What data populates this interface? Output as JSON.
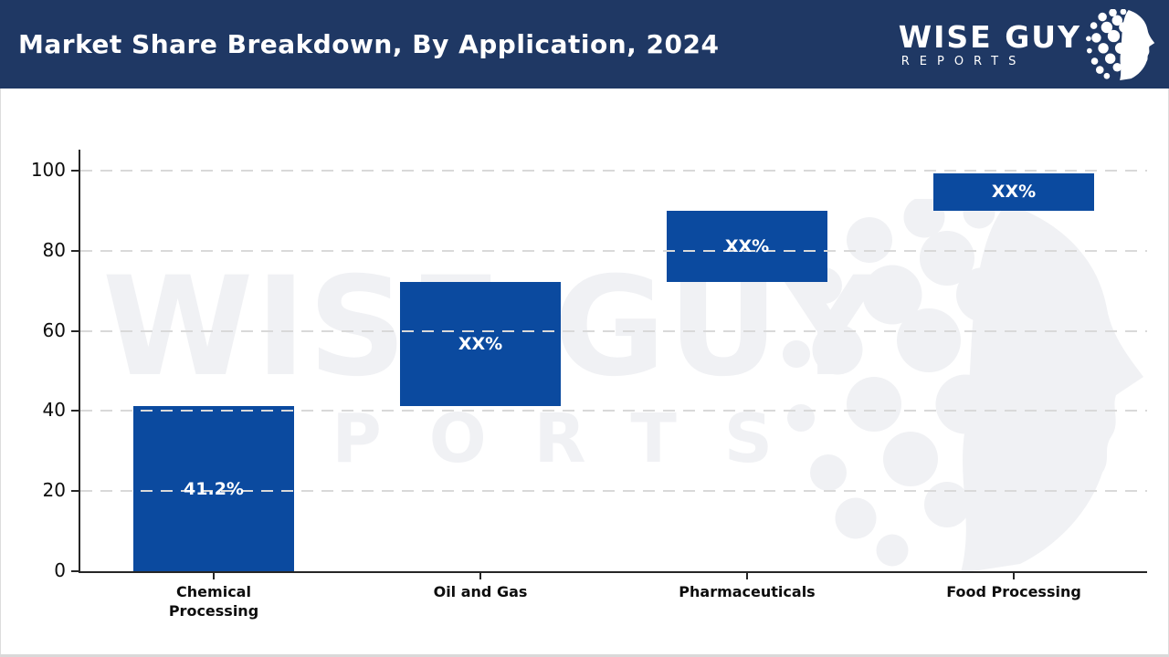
{
  "header": {
    "title": "Market Share Breakdown, By Application, 2024",
    "bg_color": "#1f3864",
    "logo": {
      "line1": "WISE GUY",
      "line2": "REPORTS"
    }
  },
  "watermark": {
    "line1": "WISE GUY",
    "line2": "REPORTS"
  },
  "chart_data": {
    "type": "bar",
    "subtype": "waterfall",
    "title": "Market Share Breakdown, By Application, 2024",
    "categories": [
      "Chemical Processing",
      "Oil and Gas",
      "Pharmaceuticals",
      "Food Processing"
    ],
    "segments": [
      {
        "category": "Chemical Processing",
        "start": 0,
        "end": 41.2,
        "label": "41.2%"
      },
      {
        "category": "Oil and Gas",
        "start": 41.2,
        "end": 72.3,
        "label": "XX%"
      },
      {
        "category": "Pharmaceuticals",
        "start": 72.3,
        "end": 90.0,
        "label": "XX%"
      },
      {
        "category": "Food Processing",
        "start": 90.0,
        "end": 99.3,
        "label": "XX%"
      }
    ],
    "xlabel": "",
    "ylabel": "",
    "ylim": [
      0,
      100
    ],
    "yticks": [
      0,
      20,
      40,
      60,
      80,
      100
    ],
    "grid": "horizontal-dashed-over-bars",
    "legend": "none",
    "bar_color": "#0b4a9f",
    "bar_label_color": "#ffffff",
    "gridline_color": "#d9d9d9",
    "axis_color": "#262626"
  }
}
